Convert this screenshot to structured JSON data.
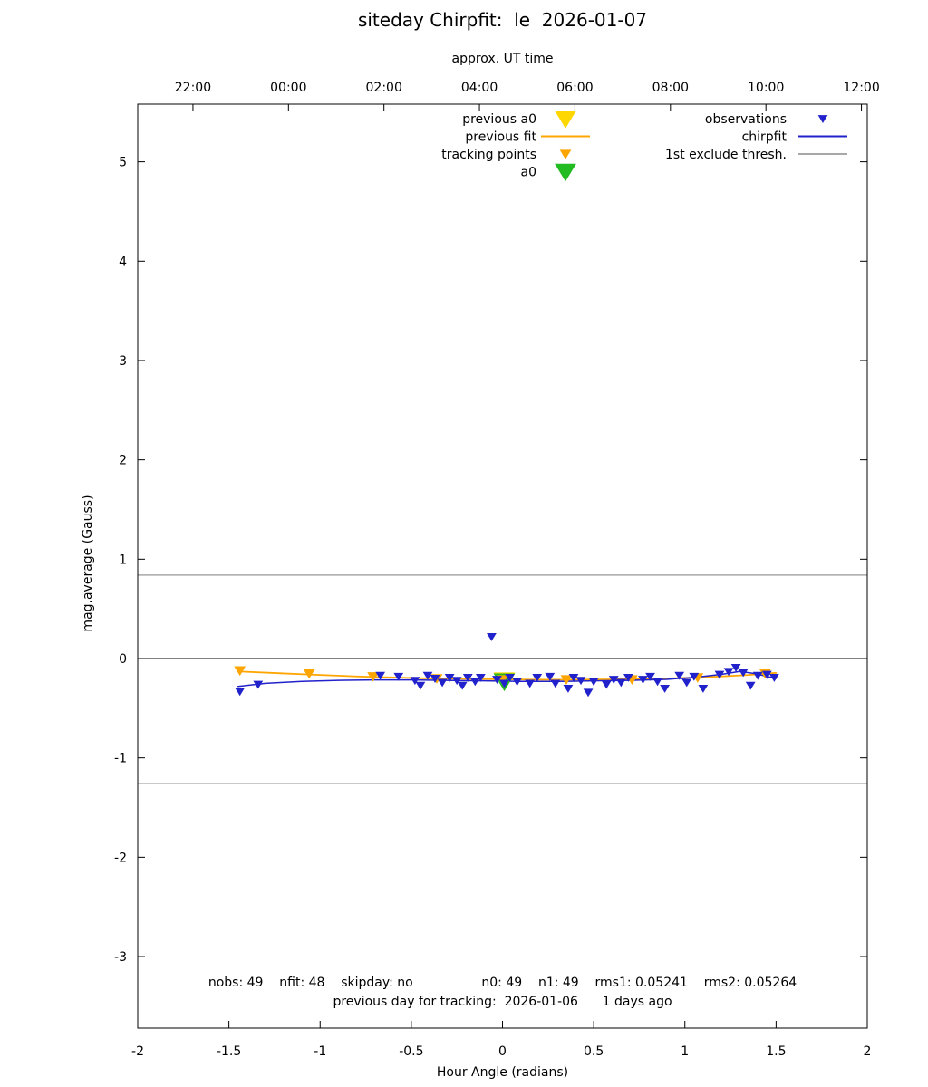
{
  "chart_data": {
    "type": "scatter",
    "title": "siteday Chirpfit:  le  2026-01-07",
    "x2label": "approx. UT time",
    "xlabel": "Hour Angle (radians)",
    "ylabel": "mag.average (Gauss)",
    "xlim": [
      -2,
      2
    ],
    "ylim": [
      -3.72,
      5.58
    ],
    "grid": false,
    "x_ticks": [
      {
        "v": -2,
        "label": "-2"
      },
      {
        "v": -1.5,
        "label": "-1.5"
      },
      {
        "v": -1,
        "label": "-1"
      },
      {
        "v": -0.5,
        "label": "-0.5"
      },
      {
        "v": 0,
        "label": "0"
      },
      {
        "v": 0.5,
        "label": "0.5"
      },
      {
        "v": 1,
        "label": "1"
      },
      {
        "v": 1.5,
        "label": "1.5"
      },
      {
        "v": 2,
        "label": "2"
      }
    ],
    "y_ticks": [
      {
        "v": -3,
        "label": "-3"
      },
      {
        "v": -2,
        "label": "-2"
      },
      {
        "v": -1,
        "label": "-1"
      },
      {
        "v": 0,
        "label": "0"
      },
      {
        "v": 1,
        "label": "1"
      },
      {
        "v": 2,
        "label": "2"
      },
      {
        "v": 3,
        "label": "3"
      },
      {
        "v": 4,
        "label": "4"
      },
      {
        "v": 5,
        "label": "5"
      }
    ],
    "ut_ticks": [
      {
        "ha": -1.6972,
        "label": "22:00"
      },
      {
        "ha": -1.1736,
        "label": "00:00"
      },
      {
        "ha": -0.65,
        "label": "02:00"
      },
      {
        "ha": -0.1264,
        "label": "04:00"
      },
      {
        "ha": 0.3972,
        "label": "06:00"
      },
      {
        "ha": 0.9208,
        "label": "08:00"
      },
      {
        "ha": 1.4444,
        "label": "10:00"
      },
      {
        "ha": 1.968,
        "label": "12:00"
      }
    ],
    "zero_line": 0,
    "exclude_thresholds": {
      "values": [
        0.84,
        -1.26
      ],
      "color": "#a8a8a8"
    },
    "colors": {
      "observations": "#2222cc",
      "chirpfit": "#2222cc",
      "previous_fit": "#ffa500",
      "tracking_points": "#ffa500",
      "previous_a0": "#ffd700",
      "a0": "#22bb22",
      "threshold": "#a8a8a8",
      "axis": "#000000"
    },
    "series": [
      {
        "name": "previous fit",
        "type": "line",
        "color": "#ffa500",
        "width": 1.8,
        "points": [
          [
            -1.45,
            -0.13
          ],
          [
            -1.2,
            -0.15
          ],
          [
            -1.0,
            -0.165
          ],
          [
            -0.8,
            -0.18
          ],
          [
            -0.6,
            -0.19
          ],
          [
            -0.4,
            -0.2
          ],
          [
            -0.2,
            -0.205
          ],
          [
            0,
            -0.21
          ],
          [
            0.2,
            -0.213
          ],
          [
            0.4,
            -0.213
          ],
          [
            0.6,
            -0.21
          ],
          [
            0.8,
            -0.205
          ],
          [
            1.0,
            -0.195
          ],
          [
            1.2,
            -0.18
          ],
          [
            1.35,
            -0.165
          ],
          [
            1.45,
            -0.15
          ],
          [
            1.5,
            -0.145
          ]
        ]
      },
      {
        "name": "chirpfit",
        "type": "line",
        "color": "#2222cc",
        "width": 1.5,
        "points": [
          [
            -1.45,
            -0.28
          ],
          [
            -1.3,
            -0.25
          ],
          [
            -1.1,
            -0.23
          ],
          [
            -0.9,
            -0.22
          ],
          [
            -0.7,
            -0.215
          ],
          [
            -0.5,
            -0.215
          ],
          [
            -0.3,
            -0.22
          ],
          [
            -0.1,
            -0.225
          ],
          [
            0.1,
            -0.23
          ],
          [
            0.3,
            -0.23
          ],
          [
            0.5,
            -0.225
          ],
          [
            0.7,
            -0.22
          ],
          [
            0.9,
            -0.21
          ],
          [
            1.05,
            -0.19
          ],
          [
            1.2,
            -0.16
          ],
          [
            1.3,
            -0.13
          ],
          [
            1.38,
            -0.15
          ],
          [
            1.45,
            -0.18
          ],
          [
            1.5,
            -0.2
          ]
        ]
      },
      {
        "name": "previous a0",
        "type": "scatter",
        "marker": "triangle-large",
        "color": "#ffd700",
        "points": [
          [
            0.01,
            -0.22
          ]
        ]
      },
      {
        "name": "a0",
        "type": "scatter",
        "marker": "triangle-large",
        "color": "#22bb22",
        "points": [
          [
            0.01,
            -0.23
          ]
        ]
      },
      {
        "name": "tracking points",
        "type": "scatter",
        "marker": "triangle-small",
        "color": "#ffa500",
        "points": [
          [
            -1.44,
            -0.12
          ],
          [
            -1.06,
            -0.15
          ],
          [
            -0.71,
            -0.18
          ],
          [
            -0.36,
            -0.2
          ],
          [
            0.0,
            -0.21
          ],
          [
            0.35,
            -0.21
          ],
          [
            0.71,
            -0.21
          ],
          [
            1.07,
            -0.19
          ],
          [
            1.44,
            -0.15
          ]
        ]
      },
      {
        "name": "observations",
        "type": "scatter",
        "marker": "triangle-tiny",
        "color": "#2222cc",
        "points": [
          [
            -1.44,
            -0.33
          ],
          [
            -1.34,
            -0.26
          ],
          [
            -0.67,
            -0.17
          ],
          [
            -0.57,
            -0.18
          ],
          [
            -0.48,
            -0.22
          ],
          [
            -0.45,
            -0.27
          ],
          [
            -0.41,
            -0.17
          ],
          [
            -0.37,
            -0.2
          ],
          [
            -0.33,
            -0.24
          ],
          [
            -0.29,
            -0.19
          ],
          [
            -0.25,
            -0.22
          ],
          [
            -0.22,
            -0.27
          ],
          [
            -0.19,
            -0.19
          ],
          [
            -0.15,
            -0.23
          ],
          [
            -0.12,
            -0.19
          ],
          [
            -0.06,
            0.22
          ],
          [
            -0.03,
            -0.21
          ],
          [
            0.01,
            -0.25
          ],
          [
            0.04,
            -0.19
          ],
          [
            0.08,
            -0.23
          ],
          [
            0.15,
            -0.25
          ],
          [
            0.19,
            -0.19
          ],
          [
            0.26,
            -0.18
          ],
          [
            0.29,
            -0.25
          ],
          [
            0.36,
            -0.3
          ],
          [
            0.39,
            -0.19
          ],
          [
            0.43,
            -0.22
          ],
          [
            0.47,
            -0.34
          ],
          [
            0.5,
            -0.23
          ],
          [
            0.57,
            -0.26
          ],
          [
            0.61,
            -0.21
          ],
          [
            0.65,
            -0.24
          ],
          [
            0.69,
            -0.19
          ],
          [
            0.77,
            -0.21
          ],
          [
            0.81,
            -0.18
          ],
          [
            0.85,
            -0.23
          ],
          [
            0.89,
            -0.3
          ],
          [
            0.97,
            -0.17
          ],
          [
            1.01,
            -0.24
          ],
          [
            1.05,
            -0.18
          ],
          [
            1.1,
            -0.3
          ],
          [
            1.19,
            -0.16
          ],
          [
            1.24,
            -0.13
          ],
          [
            1.28,
            -0.09
          ],
          [
            1.32,
            -0.14
          ],
          [
            1.36,
            -0.27
          ],
          [
            1.4,
            -0.17
          ],
          [
            1.45,
            -0.16
          ],
          [
            1.49,
            -0.19
          ]
        ]
      }
    ],
    "legend": {
      "position": "top-inside",
      "columns": [
        {
          "entries": [
            {
              "label": "previous a0",
              "marker": "triangle-large",
              "color": "#ffd700"
            },
            {
              "label": "previous fit",
              "marker": "line",
              "color": "#ffa500"
            },
            {
              "label": "tracking points",
              "marker": "triangle-small",
              "color": "#ffa500"
            },
            {
              "label": "a0",
              "marker": "triangle-large",
              "color": "#22bb22"
            }
          ]
        },
        {
          "entries": [
            {
              "label": "observations",
              "marker": "triangle-tiny",
              "color": "#2222cc"
            },
            {
              "label": "chirpfit",
              "marker": "line",
              "color": "#2222cc"
            },
            {
              "label": "1st exclude thresh.",
              "marker": "line",
              "color": "#a8a8a8"
            }
          ]
        }
      ]
    },
    "stats": {
      "nobs": 49,
      "nfit": 48,
      "skipday": "no",
      "n0": 49,
      "n1": 49,
      "rms1": 0.05241,
      "rms2": 0.05264,
      "previous_day_for_tracking": "2026-01-06",
      "days_ago": 1
    },
    "stats_line1": "nobs: 49    nfit: 48    skipday: no                 n0: 49    n1: 49    rms1: 0.05241    rms2: 0.05264",
    "stats_line2": "previous day for tracking:  2026-01-06      1 days ago"
  }
}
